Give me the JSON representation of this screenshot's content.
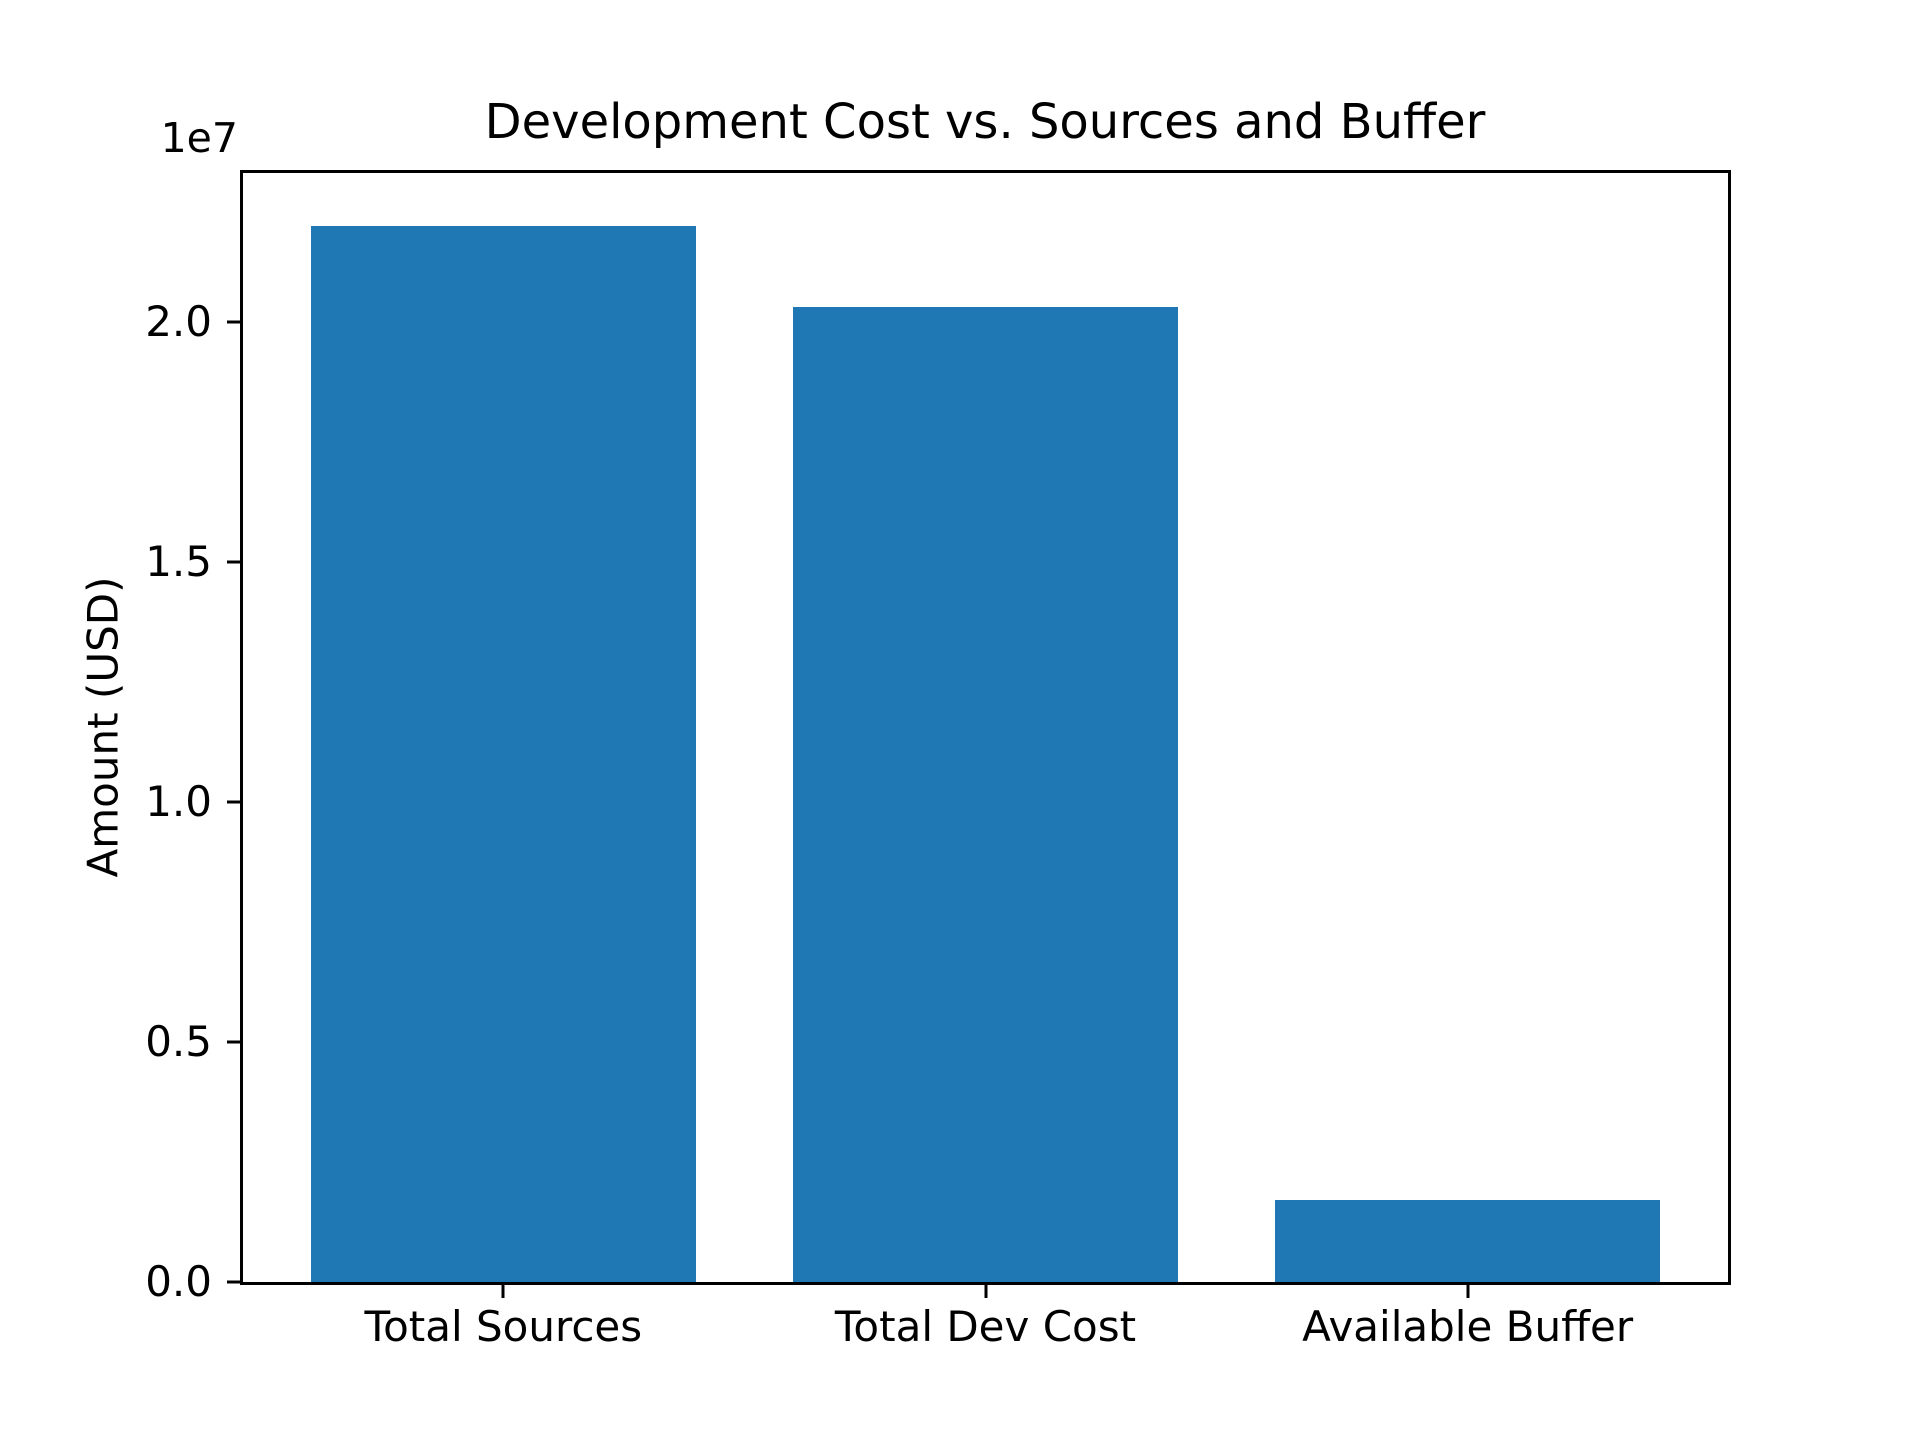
{
  "chart_data": {
    "type": "bar",
    "title": "Development Cost vs. Sources and Buffer",
    "xlabel": "",
    "ylabel": "Amount (USD)",
    "y_offset_text": "1e7",
    "categories": [
      "Total Sources",
      "Total Dev Cost",
      "Available Buffer"
    ],
    "values": [
      22000000,
      20300000,
      1700000
    ],
    "ylim": [
      0,
      23100000
    ],
    "yticks": [
      {
        "label": "0.0",
        "value": 0
      },
      {
        "label": "0.5",
        "value": 5000000
      },
      {
        "label": "1.0",
        "value": 10000000
      },
      {
        "label": "1.5",
        "value": 15000000
      },
      {
        "label": "2.0",
        "value": 20000000
      }
    ],
    "bar_color": "#1f77b4",
    "text_color": "#000000",
    "background": "#ffffff",
    "grid": false,
    "legend": null
  }
}
